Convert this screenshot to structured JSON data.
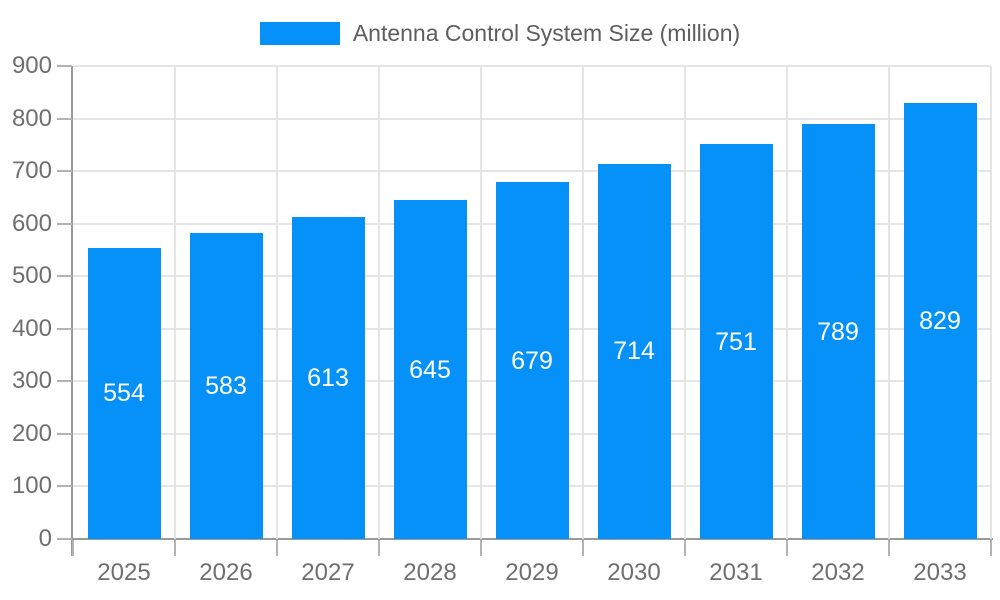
{
  "legend": {
    "label": "Antenna Control System Size (million)"
  },
  "colors": {
    "bar": "#0591F7",
    "bar_label": "#FFFFFF",
    "grid": "#E5E5E5",
    "axis_line": "#9A9A9A",
    "tick": "#B3B3B3",
    "axis_text": "#6F6F6F",
    "legend_text": "#5E5E5E",
    "background": "#FFFFFF"
  },
  "chart_data": {
    "type": "bar",
    "title": "Antenna Control System Size (million)",
    "categories": [
      "2025",
      "2026",
      "2027",
      "2028",
      "2029",
      "2030",
      "2031",
      "2032",
      "2033"
    ],
    "values": [
      554,
      583,
      613,
      645,
      679,
      714,
      751,
      789,
      829
    ],
    "bar_labels": [
      554,
      583,
      613,
      645,
      679,
      714,
      751,
      789,
      829
    ],
    "xlabel": "",
    "ylabel": "",
    "ylim": [
      0,
      900
    ],
    "yticks": [
      0,
      100,
      200,
      300,
      400,
      500,
      600,
      700,
      800,
      900
    ],
    "grid": true,
    "legend_position": "top",
    "bar_label_position": "center",
    "bar_label_color": "#FFFFFF"
  }
}
